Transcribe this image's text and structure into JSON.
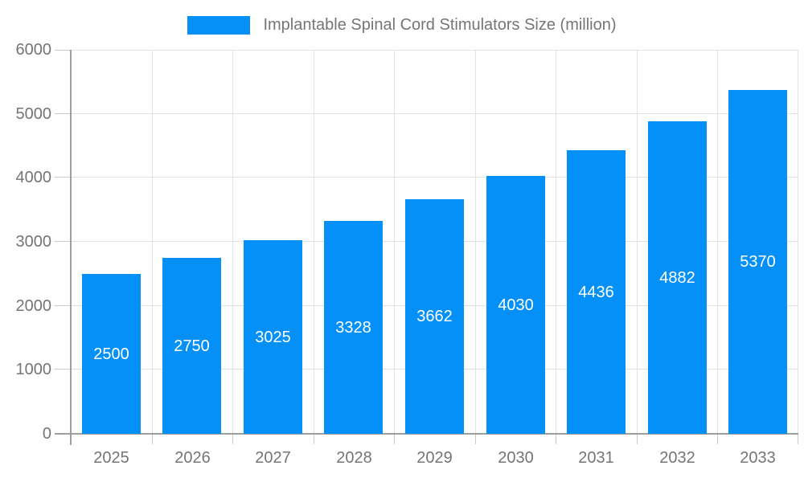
{
  "legend": {
    "label": "Implantable Spinal Cord Stimulators Size (million)",
    "swatch_color": "#0590f8",
    "position": "top-center"
  },
  "colors": {
    "bar": "#0590f8",
    "bar_label": "#ffffff",
    "axis_text": "#757575",
    "grid_line": "#e3e3e3",
    "tick_line": "#c9c9c9",
    "axis_line": "#9e9e9e",
    "background": "#ffffff"
  },
  "chart_data": {
    "type": "bar",
    "title": "Implantable Spinal Cord Stimulators Size (million)",
    "categories": [
      "2025",
      "2026",
      "2027",
      "2028",
      "2029",
      "2030",
      "2031",
      "2032",
      "2033"
    ],
    "values": [
      2500,
      2750,
      3025,
      3328,
      3662,
      4030,
      4436,
      4882,
      5370
    ],
    "xlabel": "",
    "ylabel": "",
    "ylim": [
      0,
      6000
    ],
    "ytick_interval": 1000,
    "yticks": [
      0,
      1000,
      2000,
      3000,
      4000,
      5000,
      6000
    ],
    "grid": true,
    "legend_position": "top",
    "bar_label_position": "inside-middle"
  }
}
